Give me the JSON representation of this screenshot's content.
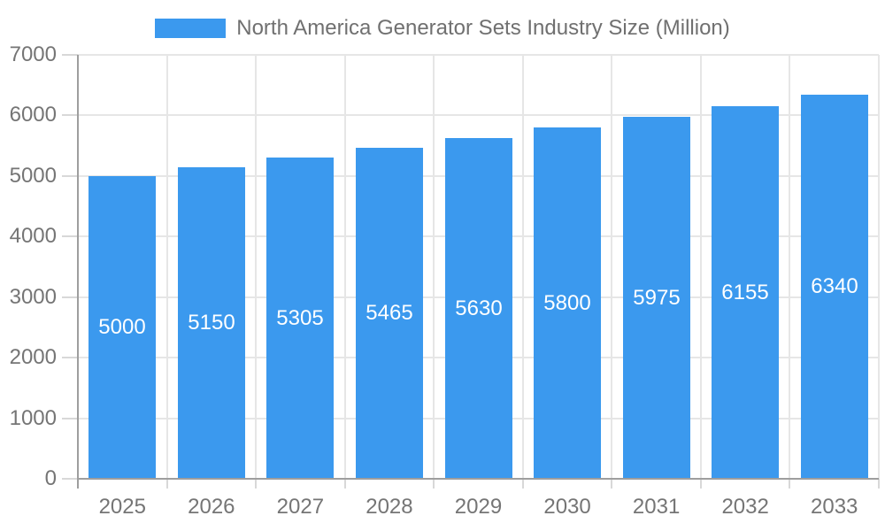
{
  "chart_data": {
    "type": "bar",
    "title": "North America Generator Sets Industry Size (Million)",
    "legend_position": "top",
    "categories": [
      "2025",
      "2026",
      "2027",
      "2028",
      "2029",
      "2030",
      "2031",
      "2032",
      "2033"
    ],
    "values": [
      5000,
      5150,
      5305,
      5465,
      5630,
      5800,
      5975,
      6155,
      6340
    ],
    "yticks": [
      0,
      1000,
      2000,
      3000,
      4000,
      5000,
      6000,
      7000
    ],
    "ylim": [
      0,
      7000
    ],
    "xlabel": "",
    "ylabel": "",
    "grid": true,
    "value_label_position": "inside-center",
    "colors": {
      "bar": "#3B99EE",
      "value_label": "#ffffff",
      "axis_line": "#9E9E9E",
      "gridline": "#E6E6E6",
      "tick_mark": "#D8D8D8",
      "tick_label": "#757575",
      "legend_text": "#707070",
      "background": "#ffffff"
    }
  }
}
